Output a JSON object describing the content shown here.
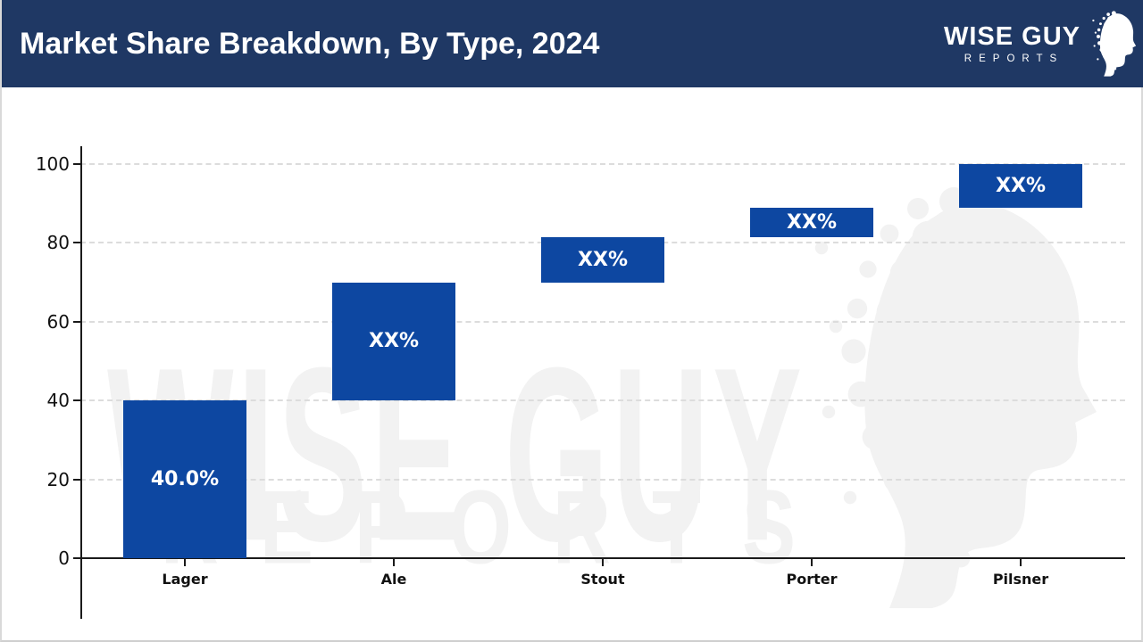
{
  "header": {
    "title": "Market Share Breakdown, By Type, 2024",
    "logo": {
      "line1": "WISE GUY",
      "line2": "REPORTS"
    }
  },
  "watermark": {
    "line1": "WISE GUY",
    "line2": "REPORTS"
  },
  "colors": {
    "header_bg": "#1f3864",
    "bar": "#0d47a1",
    "grid": "#dcdcdc",
    "axis": "#1a1a1a",
    "tick_text": "#111111",
    "bar_label_text": "#ffffff",
    "watermark": "#f2f2f2"
  },
  "chart_data": {
    "type": "bar",
    "subtype": "waterfall",
    "title": "Market Share Breakdown, By Type, 2024",
    "categories": [
      "Lager",
      "Ale",
      "Stout",
      "Porter",
      "Pilsner"
    ],
    "segments": [
      {
        "category": "Lager",
        "start": 0,
        "end": 40,
        "value_label": "40.0%"
      },
      {
        "category": "Ale",
        "start": 40,
        "end": 70,
        "value_label": "XX%"
      },
      {
        "category": "Stout",
        "start": 70,
        "end": 81.5,
        "value_label": "XX%"
      },
      {
        "category": "Porter",
        "start": 81.5,
        "end": 89,
        "value_label": "XX%"
      },
      {
        "category": "Pilsner",
        "start": 89,
        "end": 100,
        "value_label": "XX%"
      }
    ],
    "xlabel": "",
    "ylabel": "",
    "ylim": [
      0,
      100
    ],
    "yticks": [
      0,
      20,
      40,
      60,
      80,
      100
    ],
    "grid": "horizontal-dashed",
    "legend": "none"
  }
}
